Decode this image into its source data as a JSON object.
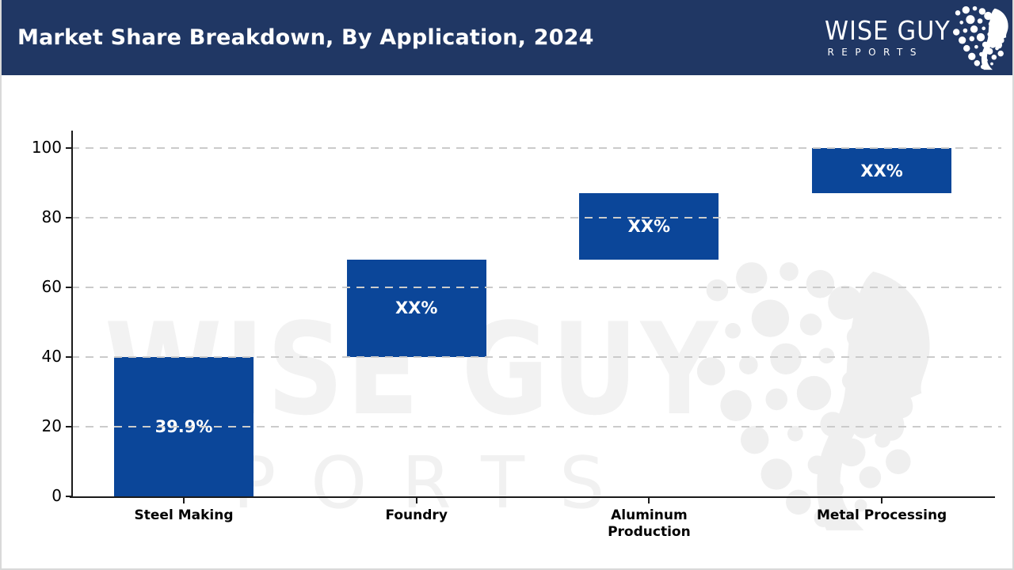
{
  "colors": {
    "header_bg": "#203764",
    "bar_blue": "#0b4699",
    "grid_gray": "#cbcbcb",
    "axis_black": "#1a1a1a",
    "watermark_gray": "#f2f2f2",
    "title_white": "#ffffff"
  },
  "header": {
    "title": "Market Share Breakdown, By Application, 2024",
    "logo_line1": "WISE GUY",
    "logo_line2": "REPORTS"
  },
  "watermark": {
    "line1": "WISE GUY",
    "line2": "PORTS"
  },
  "chart_data": {
    "type": "bar",
    "variant": "waterfall",
    "title": "Market Share Breakdown, By Application, 2024",
    "categories": [
      "Steel Making",
      "Foundry",
      "Aluminum Production",
      "Metal Processing"
    ],
    "segments": [
      {
        "category": "Steel Making",
        "start": 0,
        "end": 39.9,
        "label": "39.9%"
      },
      {
        "category": "Foundry",
        "start": 40,
        "end": 68,
        "label": "XX%"
      },
      {
        "category": "Aluminum Production",
        "start": 68,
        "end": 87,
        "label": "XX%"
      },
      {
        "category": "Metal Processing",
        "start": 87,
        "end": 100,
        "label": "XX%"
      }
    ],
    "xlabel": "",
    "ylabel": "",
    "yticks": [
      0,
      20,
      40,
      60,
      80,
      100
    ],
    "ylim": [
      0,
      105
    ],
    "grid": "horizontal-dashed",
    "legend": "none",
    "bar_color": "#0b4699",
    "bar_label_color": "#ffffff"
  }
}
